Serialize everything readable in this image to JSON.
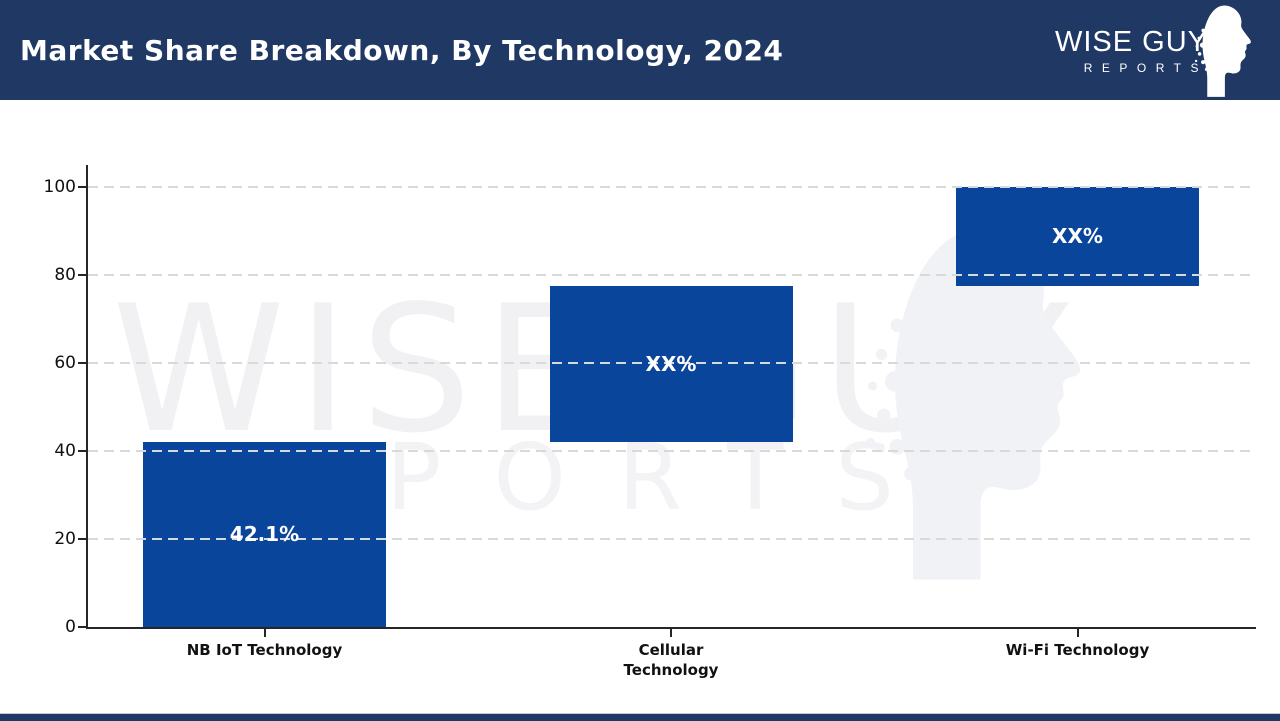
{
  "header": {
    "title": "Market Share Breakdown, By Technology, 2024",
    "logo": {
      "line1": "WISE GUY",
      "line2": "REPORTS"
    }
  },
  "watermark": {
    "line1": "WISE GUY",
    "line2": "REPORTS"
  },
  "chart_data": {
    "type": "bar",
    "subtype": "waterfall",
    "title": "Market Share Breakdown, By Technology, 2024",
    "categories": [
      "NB IoT Technology",
      "Cellular\nTechnology",
      "Wi-Fi Technology"
    ],
    "values": [
      42.1,
      35.5,
      22.4
    ],
    "segments": [
      {
        "start": 0,
        "end": 42.1,
        "label": "42.1%"
      },
      {
        "start": 42.1,
        "end": 77.6,
        "label": "XX%"
      },
      {
        "start": 77.6,
        "end": 100,
        "label": "XX%"
      }
    ],
    "xlabel": "",
    "ylabel": "",
    "ylim": [
      0,
      100
    ],
    "yticks": [
      0,
      20,
      40,
      60,
      80,
      100
    ],
    "grid": "horizontal-dashed",
    "legend": "none",
    "bar_color": "#0a459c",
    "label_color": "#ffffff"
  },
  "colors": {
    "header_bg": "#203864",
    "footer_bg": "#203864",
    "bar": "#0a459c",
    "gridline": "#d9d9d9",
    "axis": "#262626",
    "watermark": "#f1f1f4"
  }
}
